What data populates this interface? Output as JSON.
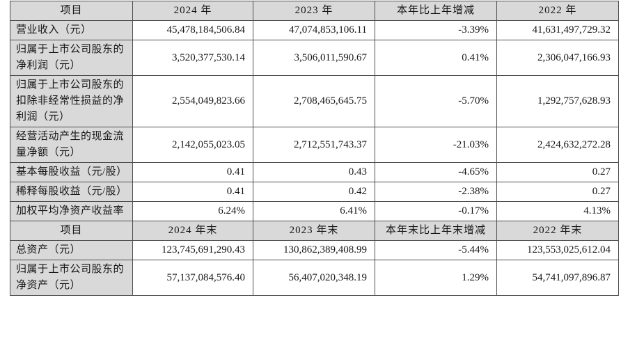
{
  "document": {
    "type": "annual-report-key-financials-table",
    "language": "zh-CN"
  },
  "colors": {
    "header_background": "#d9d9d9",
    "label_background": "#d9d9d9",
    "cell_background": "#ffffff",
    "border": "#4d4d4d",
    "text": "#161616"
  },
  "annual_section": {
    "headers": [
      "项目",
      "2024 年",
      "2023 年",
      "本年比上年增减",
      "2022 年"
    ],
    "rows": [
      {
        "label": "营业收入（元）",
        "values": [
          "45,478,184,506.84",
          "47,074,853,106.11",
          "-3.39%",
          "41,631,497,729.32"
        ]
      },
      {
        "label": "归属于上市公司股东的净利润（元）",
        "values": [
          "3,520,377,530.14",
          "3,506,011,590.67",
          "0.41%",
          "2,306,047,166.93"
        ]
      },
      {
        "label": "归属于上市公司股东的扣除非经常性损益的净利润（元）",
        "values": [
          "2,554,049,823.66",
          "2,708,465,645.75",
          "-5.70%",
          "1,292,757,628.93"
        ]
      },
      {
        "label": "经营活动产生的现金流量净额（元）",
        "values": [
          "2,142,055,023.05",
          "2,712,551,743.37",
          "-21.03%",
          "2,424,632,272.28"
        ]
      },
      {
        "label": "基本每股收益（元/股）",
        "values": [
          "0.41",
          "0.43",
          "-4.65%",
          "0.27"
        ]
      },
      {
        "label": "稀释每股收益（元/股）",
        "values": [
          "0.41",
          "0.42",
          "-2.38%",
          "0.27"
        ]
      },
      {
        "label": "加权平均净资产收益率",
        "values": [
          "6.24%",
          "6.41%",
          "-0.17%",
          "4.13%"
        ]
      }
    ]
  },
  "yearend_section": {
    "headers": [
      "项目",
      "2024 年末",
      "2023 年末",
      "本年末比上年末增减",
      "2022 年末"
    ],
    "rows": [
      {
        "label": "总资产（元）",
        "values": [
          "123,745,691,290.43",
          "130,862,389,408.99",
          "-5.44%",
          "123,553,025,612.04"
        ]
      },
      {
        "label": "归属于上市公司股东的净资产（元）",
        "values": [
          "57,137,084,576.40",
          "56,407,020,348.19",
          "1.29%",
          "54,741,097,896.87"
        ]
      }
    ]
  }
}
